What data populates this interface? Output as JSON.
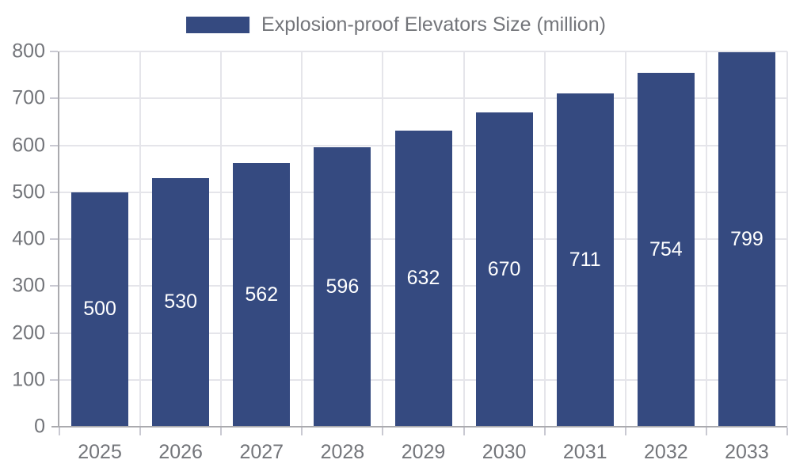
{
  "chart_data": {
    "type": "bar",
    "title": "",
    "legend": "Explosion-proof Elevators Size (million)",
    "categories": [
      "2025",
      "2026",
      "2027",
      "2028",
      "2029",
      "2030",
      "2031",
      "2032",
      "2033"
    ],
    "values": [
      500,
      530,
      562,
      596,
      632,
      670,
      711,
      754,
      799
    ],
    "xlabel": "",
    "ylabel": "",
    "ylim": [
      0,
      800
    ],
    "yticks": [
      0,
      100,
      200,
      300,
      400,
      500,
      600,
      700,
      800
    ],
    "grid": true,
    "legend_position": "top-center",
    "value_labels": "inside-center"
  },
  "colors": {
    "bar": "#354A80",
    "bar_label": "#ffffff",
    "axis_line": "#aaaaae",
    "tick_line": "#c9c9d2",
    "grid_line": "#e5e5ea",
    "axis_text": "#73757a",
    "legend_text": "#73757a",
    "background": "#ffffff"
  }
}
